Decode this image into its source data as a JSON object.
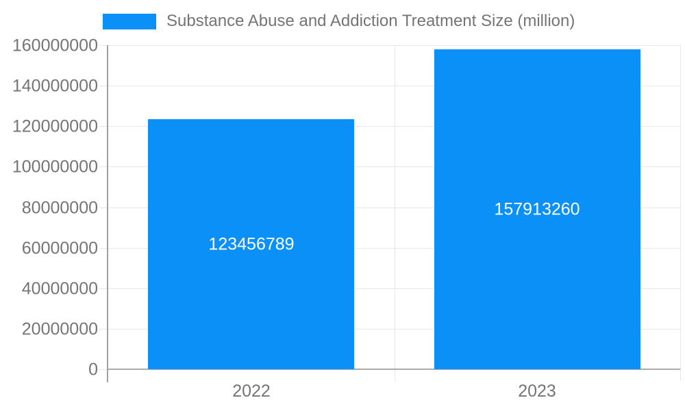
{
  "chart_data": {
    "type": "bar",
    "title": "Substance Abuse and Addiction Treatment Size (million)",
    "categories": [
      "2022",
      "2023"
    ],
    "values": [
      123456789,
      157913260
    ],
    "value_labels": [
      "123456789",
      "157913260"
    ],
    "ylim": [
      0,
      160000000
    ],
    "ytick_interval": 20000000,
    "yticks": [
      0,
      20000000,
      40000000,
      60000000,
      80000000,
      100000000,
      120000000,
      140000000,
      160000000
    ],
    "ytick_labels": [
      "0",
      "20000000",
      "40000000",
      "60000000",
      "80000000",
      "100000000",
      "120000000",
      "140000000",
      "160000000"
    ],
    "grid": true,
    "legend_position": "top-left",
    "colors": {
      "bar": "#0a90f6",
      "value_label": "#ffffff",
      "axis_text": "#757575",
      "axis_line": "#a0a0a0",
      "baseline": "#ababab",
      "gridline": "#e6e6e6",
      "background": "#ffffff"
    }
  }
}
